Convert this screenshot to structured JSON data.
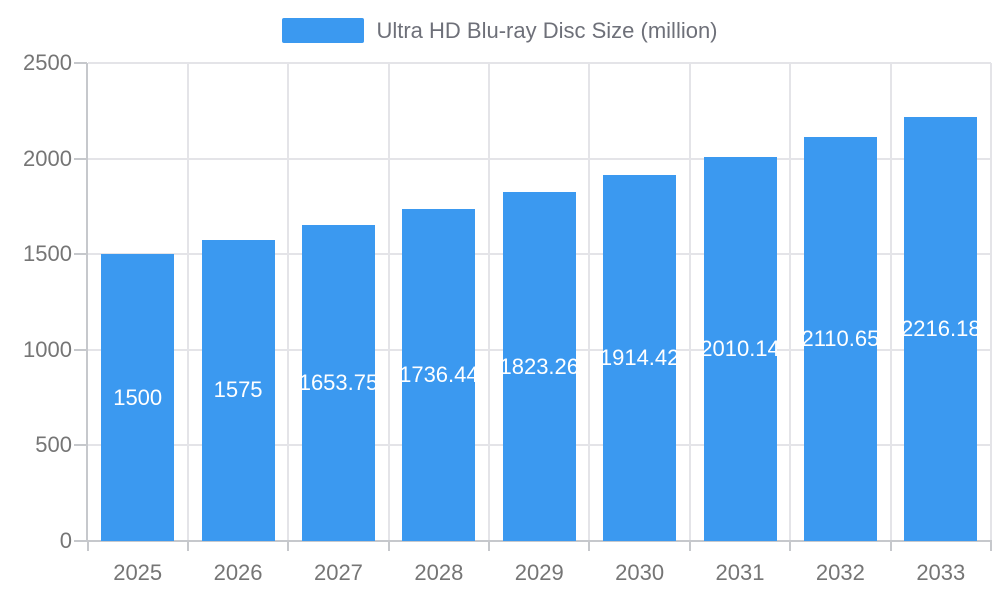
{
  "chart_data": {
    "type": "bar",
    "title": "Ultra HD Blu-ray Disc Size (million)",
    "categories": [
      "2025",
      "2026",
      "2027",
      "2028",
      "2029",
      "2030",
      "2031",
      "2032",
      "2033"
    ],
    "values": [
      1500,
      1575,
      1653.75,
      1736.44,
      1823.26,
      1914.42,
      2010.14,
      2110.65,
      2216.18
    ],
    "value_labels": [
      "1500",
      "1575",
      "1653.75",
      "1736.44",
      "1823.26",
      "1914.42",
      "2010.14",
      "2110.65",
      "2216.18"
    ],
    "xlabel": "",
    "ylabel": "",
    "ylim": [
      0,
      2500
    ],
    "y_ticks": [
      0,
      500,
      1000,
      1500,
      2000,
      2500
    ],
    "grid": true,
    "legend_position": "top",
    "value_label_position": "inside-middle",
    "colors": {
      "bar": "#3B99F0",
      "grid_line": "#E4E4E8",
      "axis_line": "#C6C8CC",
      "axis_label": "#757575",
      "legend_text": "#6E7079",
      "value_label": "#FFFFFF",
      "background": "#FFFFFF"
    }
  }
}
